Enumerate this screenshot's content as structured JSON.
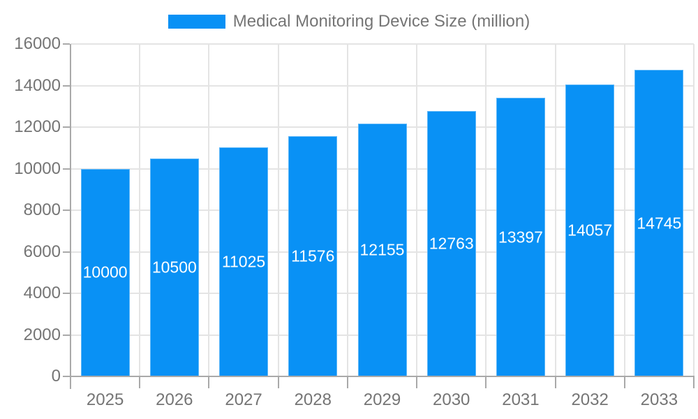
{
  "chart_data": {
    "type": "bar",
    "title": "Medical Monitoring Device Size (million)",
    "categories": [
      "2025",
      "2026",
      "2027",
      "2028",
      "2029",
      "2030",
      "2031",
      "2032",
      "2033"
    ],
    "values": [
      10000,
      10500,
      11025,
      11576,
      12155,
      12763,
      13397,
      14057,
      14745
    ],
    "ylim": [
      0,
      16000
    ],
    "ytick_step": 2000,
    "ytick_labels": [
      "0",
      "2000",
      "4000",
      "6000",
      "8000",
      "10000",
      "12000",
      "14000",
      "16000"
    ],
    "legend_position": "top-center",
    "grid": "horizontal-and-vertical",
    "bar_labels_inside": true,
    "colors": {
      "bar": "#0991f5",
      "grid": "#e4e4e4",
      "axis": "#a9a9a9",
      "text": "#757575",
      "bar_label": "#ffffff",
      "background": "#ffffff"
    }
  }
}
